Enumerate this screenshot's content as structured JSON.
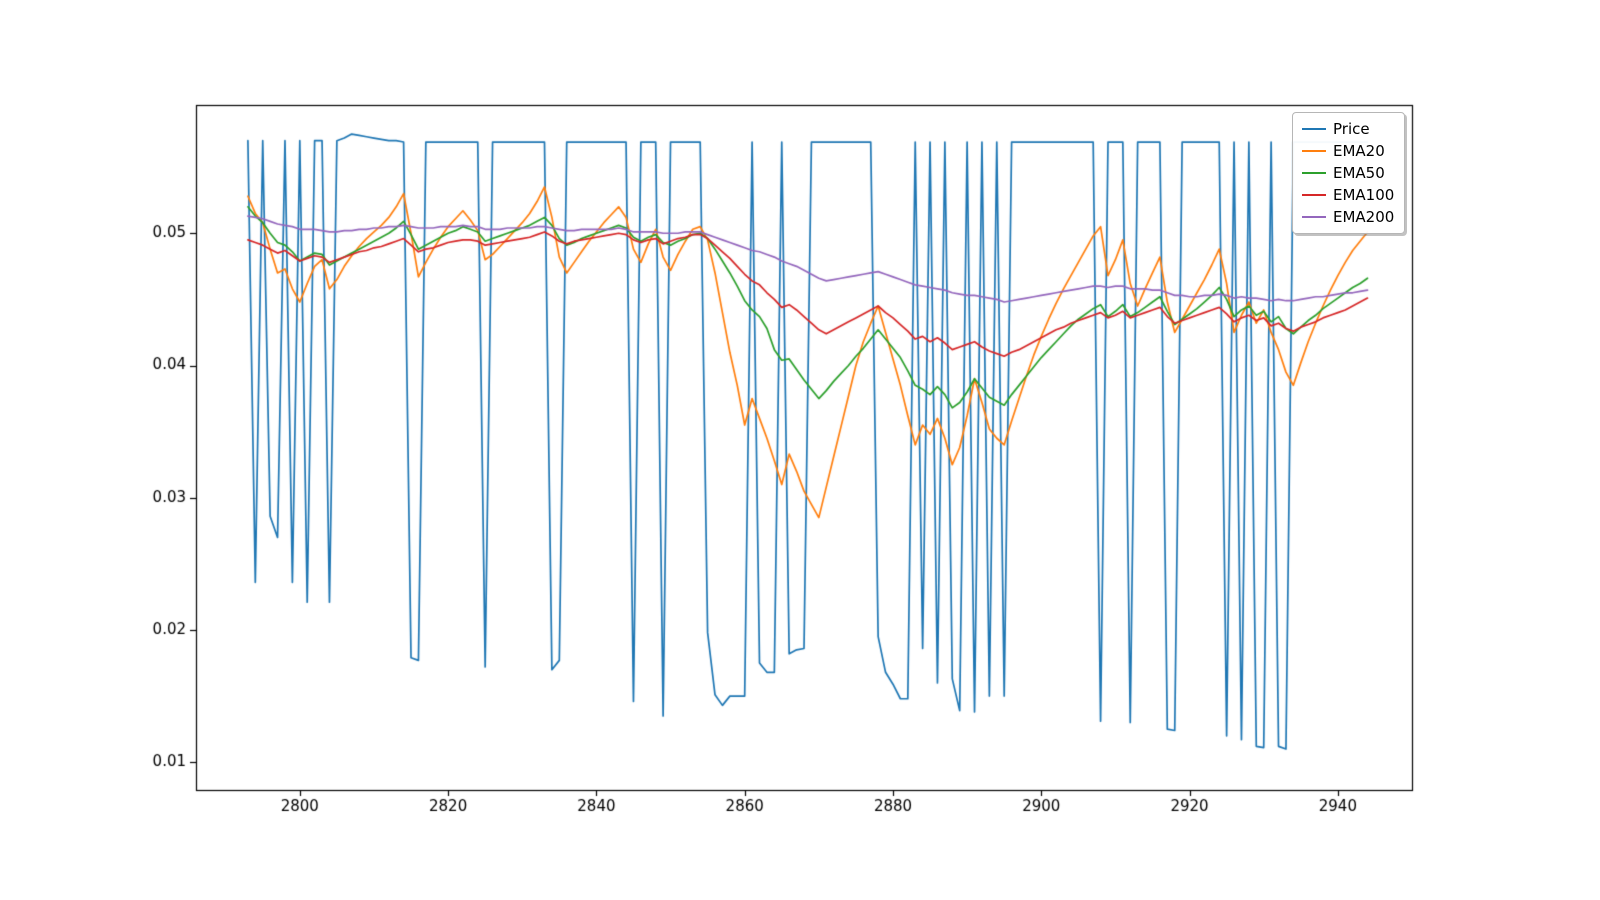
{
  "figure": {
    "background": "#ffffff",
    "plot_background": "#ffffff",
    "spine_color": "#000000",
    "tick_color": "#000000",
    "tick_label_color": "#000000"
  },
  "chart_data": {
    "type": "line",
    "title": "",
    "xlabel": "",
    "ylabel": "",
    "grid": false,
    "legend_position": "upper-right",
    "xlim": [
      2786,
      2950
    ],
    "ylim": [
      0.0079,
      0.0597
    ],
    "xticks": [
      2800,
      2820,
      2840,
      2860,
      2880,
      2900,
      2920,
      2940
    ],
    "yticks": [
      0.01,
      0.02,
      0.03,
      0.04,
      0.05
    ],
    "x_start": 2793,
    "x_step": 1,
    "x_end": 2944,
    "series": [
      {
        "name": "Price",
        "color": "#1f77b4",
        "values": [
          0.057,
          0.0236,
          0.057,
          0.0286,
          0.027,
          0.057,
          0.0236,
          0.057,
          0.0221,
          0.057,
          0.057,
          0.0221,
          0.057,
          0.0572,
          0.0575,
          0.0574,
          0.0573,
          0.0572,
          0.0571,
          0.057,
          0.057,
          0.0569,
          0.0179,
          0.0177,
          0.0569,
          0.0569,
          0.0569,
          0.0569,
          0.0569,
          0.0569,
          0.0569,
          0.0569,
          0.0172,
          0.0569,
          0.0569,
          0.0569,
          0.0569,
          0.0569,
          0.0569,
          0.0569,
          0.0569,
          0.017,
          0.0177,
          0.0569,
          0.0569,
          0.0569,
          0.0569,
          0.0569,
          0.0569,
          0.0569,
          0.0569,
          0.0569,
          0.0146,
          0.0569,
          0.0569,
          0.0569,
          0.0135,
          0.0569,
          0.0569,
          0.0569,
          0.0569,
          0.0569,
          0.0198,
          0.0151,
          0.0143,
          0.015,
          0.015,
          0.015,
          0.0569,
          0.0175,
          0.0168,
          0.0168,
          0.0569,
          0.0182,
          0.0185,
          0.0186,
          0.0569,
          0.0569,
          0.0569,
          0.0569,
          0.0569,
          0.0569,
          0.0569,
          0.0569,
          0.0569,
          0.0195,
          0.0168,
          0.0159,
          0.0148,
          0.0148,
          0.0569,
          0.0186,
          0.0569,
          0.016,
          0.0569,
          0.0163,
          0.0139,
          0.0569,
          0.0138,
          0.0569,
          0.015,
          0.0569,
          0.015,
          0.0569,
          0.0569,
          0.0569,
          0.0569,
          0.0569,
          0.0569,
          0.0569,
          0.0569,
          0.0569,
          0.0569,
          0.0569,
          0.0569,
          0.0131,
          0.0569,
          0.0569,
          0.0569,
          0.013,
          0.0569,
          0.0569,
          0.0569,
          0.0569,
          0.0125,
          0.0124,
          0.0569,
          0.0569,
          0.0569,
          0.0569,
          0.0569,
          0.0569,
          0.012,
          0.0569,
          0.0117,
          0.0569,
          0.0112,
          0.0111,
          0.0569,
          0.0112,
          0.011,
          0.0569,
          0.0569,
          0.0569,
          0.0569,
          0.0569,
          0.0569,
          0.0569,
          0.0569,
          0.0569,
          0.0569,
          0.0569
        ]
      },
      {
        "name": "EMA20",
        "color": "#ff7f0e",
        "values": [
          0.0528,
          0.0515,
          0.0508,
          0.0488,
          0.047,
          0.0473,
          0.0458,
          0.0448,
          0.0462,
          0.0475,
          0.048,
          0.0458,
          0.0465,
          0.0475,
          0.0483,
          0.049,
          0.0496,
          0.0501,
          0.0506,
          0.0512,
          0.052,
          0.053,
          0.05,
          0.0467,
          0.0478,
          0.0488,
          0.0497,
          0.0505,
          0.0511,
          0.0517,
          0.051,
          0.0502,
          0.048,
          0.0484,
          0.049,
          0.0496,
          0.0502,
          0.0508,
          0.0515,
          0.0524,
          0.0535,
          0.0512,
          0.0482,
          0.047,
          0.0478,
          0.0486,
          0.0494,
          0.0501,
          0.0508,
          0.0514,
          0.052,
          0.0512,
          0.0488,
          0.0478,
          0.0492,
          0.0503,
          0.0482,
          0.0472,
          0.0484,
          0.0494,
          0.0503,
          0.0505,
          0.0495,
          0.047,
          0.044,
          0.041,
          0.0385,
          0.0355,
          0.0375,
          0.036,
          0.0345,
          0.0328,
          0.031,
          0.0333,
          0.032,
          0.0305,
          0.0295,
          0.0285,
          0.0308,
          0.0331,
          0.0354,
          0.0377,
          0.04,
          0.0418,
          0.0432,
          0.0445,
          0.0425,
          0.0405,
          0.0385,
          0.0362,
          0.034,
          0.0355,
          0.0348,
          0.036,
          0.0345,
          0.0325,
          0.0338,
          0.0362,
          0.039,
          0.0372,
          0.0352,
          0.0345,
          0.034,
          0.0358,
          0.0375,
          0.0392,
          0.0408,
          0.0422,
          0.0435,
          0.0447,
          0.0458,
          0.0468,
          0.0478,
          0.0488,
          0.0498,
          0.0505,
          0.0468,
          0.048,
          0.0495,
          0.0462,
          0.0445,
          0.0458,
          0.047,
          0.0482,
          0.0448,
          0.0425,
          0.0435,
          0.0445,
          0.0455,
          0.0465,
          0.0476,
          0.0488,
          0.0462,
          0.0425,
          0.0438,
          0.0448,
          0.0432,
          0.0442,
          0.0425,
          0.0412,
          0.0395,
          0.0385,
          0.0402,
          0.0418,
          0.0432,
          0.0445,
          0.0457,
          0.0468,
          0.0478,
          0.0487,
          0.0494,
          0.0501
        ]
      },
      {
        "name": "EMA50",
        "color": "#2ca02c",
        "values": [
          0.052,
          0.0513,
          0.0508,
          0.05,
          0.0493,
          0.0491,
          0.0486,
          0.0479,
          0.0482,
          0.0485,
          0.0484,
          0.0476,
          0.0479,
          0.0482,
          0.0485,
          0.0488,
          0.0491,
          0.0494,
          0.0497,
          0.05,
          0.0504,
          0.0509,
          0.0499,
          0.0488,
          0.0491,
          0.0494,
          0.0497,
          0.05,
          0.0502,
          0.0505,
          0.0503,
          0.0501,
          0.0494,
          0.0496,
          0.0498,
          0.05,
          0.0502,
          0.0504,
          0.0506,
          0.0509,
          0.0512,
          0.0506,
          0.0496,
          0.0491,
          0.0493,
          0.0496,
          0.0498,
          0.05,
          0.0502,
          0.0504,
          0.0506,
          0.0504,
          0.0497,
          0.0494,
          0.0497,
          0.0499,
          0.0493,
          0.0491,
          0.0494,
          0.0496,
          0.0499,
          0.05,
          0.0496,
          0.0488,
          0.0479,
          0.047,
          0.046,
          0.0449,
          0.0442,
          0.0437,
          0.0428,
          0.0412,
          0.0404,
          0.0405,
          0.0397,
          0.0389,
          0.0382,
          0.0375,
          0.0381,
          0.0388,
          0.0394,
          0.04,
          0.0407,
          0.0413,
          0.042,
          0.0427,
          0.042,
          0.0413,
          0.0406,
          0.0396,
          0.0385,
          0.0382,
          0.0378,
          0.0384,
          0.0378,
          0.0368,
          0.0372,
          0.038,
          0.039,
          0.0383,
          0.0376,
          0.0373,
          0.037,
          0.0378,
          0.0385,
          0.0392,
          0.0399,
          0.0406,
          0.0412,
          0.0418,
          0.0424,
          0.043,
          0.0435,
          0.0439,
          0.0443,
          0.0446,
          0.0437,
          0.0441,
          0.0446,
          0.0437,
          0.044,
          0.0444,
          0.0448,
          0.0452,
          0.0441,
          0.0431,
          0.0435,
          0.0439,
          0.0443,
          0.0448,
          0.0453,
          0.0459,
          0.045,
          0.0437,
          0.0442,
          0.0445,
          0.0438,
          0.0441,
          0.0433,
          0.0437,
          0.0428,
          0.0424,
          0.0429,
          0.0434,
          0.0438,
          0.0443,
          0.0447,
          0.0451,
          0.0455,
          0.0459,
          0.0462,
          0.0466
        ]
      },
      {
        "name": "EMA100",
        "color": "#d62728",
        "values": [
          0.0495,
          0.0493,
          0.0491,
          0.0488,
          0.0485,
          0.0487,
          0.0483,
          0.0479,
          0.0481,
          0.0483,
          0.0482,
          0.0478,
          0.048,
          0.0482,
          0.0484,
          0.0486,
          0.0487,
          0.0489,
          0.049,
          0.0492,
          0.0494,
          0.0496,
          0.0491,
          0.0486,
          0.0488,
          0.0489,
          0.0491,
          0.0493,
          0.0494,
          0.0495,
          0.0495,
          0.0494,
          0.0491,
          0.0492,
          0.0493,
          0.0494,
          0.0495,
          0.0496,
          0.0497,
          0.0499,
          0.0501,
          0.0498,
          0.0494,
          0.0492,
          0.0494,
          0.0495,
          0.0496,
          0.0497,
          0.0498,
          0.0499,
          0.05,
          0.0499,
          0.0495,
          0.0493,
          0.0495,
          0.0496,
          0.0492,
          0.0494,
          0.0496,
          0.0497,
          0.0499,
          0.0499,
          0.0496,
          0.0491,
          0.0486,
          0.0481,
          0.0475,
          0.0469,
          0.0464,
          0.0461,
          0.0455,
          0.045,
          0.0444,
          0.0446,
          0.0442,
          0.0437,
          0.0432,
          0.0427,
          0.0424,
          0.0427,
          0.043,
          0.0433,
          0.0436,
          0.0439,
          0.0442,
          0.0445,
          0.044,
          0.0436,
          0.0431,
          0.0426,
          0.042,
          0.0422,
          0.0418,
          0.0421,
          0.0417,
          0.0412,
          0.0414,
          0.0416,
          0.0418,
          0.0414,
          0.0411,
          0.0409,
          0.0407,
          0.041,
          0.0412,
          0.0415,
          0.0418,
          0.0421,
          0.0424,
          0.0427,
          0.0429,
          0.0432,
          0.0434,
          0.0436,
          0.0438,
          0.044,
          0.0436,
          0.0438,
          0.0441,
          0.0436,
          0.0438,
          0.044,
          0.0442,
          0.0444,
          0.0437,
          0.0432,
          0.0434,
          0.0436,
          0.0438,
          0.044,
          0.0442,
          0.0444,
          0.0439,
          0.0433,
          0.0436,
          0.0438,
          0.0434,
          0.0436,
          0.043,
          0.0432,
          0.0428,
          0.0426,
          0.0429,
          0.0431,
          0.0433,
          0.0436,
          0.0438,
          0.044,
          0.0442,
          0.0445,
          0.0448,
          0.0451
        ]
      },
      {
        "name": "EMA200",
        "color": "#9467bd",
        "values": [
          0.0513,
          0.0512,
          0.0511,
          0.0509,
          0.0507,
          0.0506,
          0.0505,
          0.0503,
          0.0503,
          0.0503,
          0.0502,
          0.0501,
          0.0501,
          0.0502,
          0.0502,
          0.0503,
          0.0503,
          0.0504,
          0.0504,
          0.0505,
          0.0505,
          0.0506,
          0.0505,
          0.0504,
          0.0504,
          0.0504,
          0.0505,
          0.0505,
          0.0505,
          0.0506,
          0.0505,
          0.0505,
          0.0503,
          0.0503,
          0.0503,
          0.0504,
          0.0504,
          0.0504,
          0.0504,
          0.0505,
          0.0505,
          0.0504,
          0.0503,
          0.0502,
          0.0502,
          0.0503,
          0.0503,
          0.0503,
          0.0503,
          0.0503,
          0.0504,
          0.0503,
          0.0501,
          0.0501,
          0.0501,
          0.0501,
          0.05,
          0.05,
          0.05,
          0.0501,
          0.0501,
          0.0501,
          0.0499,
          0.0497,
          0.0495,
          0.0493,
          0.0491,
          0.0489,
          0.0487,
          0.0486,
          0.0484,
          0.0482,
          0.0479,
          0.0477,
          0.0475,
          0.0472,
          0.0469,
          0.0466,
          0.0464,
          0.0465,
          0.0466,
          0.0467,
          0.0468,
          0.0469,
          0.047,
          0.0471,
          0.0469,
          0.0467,
          0.0465,
          0.0463,
          0.0461,
          0.046,
          0.0459,
          0.0458,
          0.0457,
          0.0455,
          0.0454,
          0.0453,
          0.0453,
          0.0452,
          0.0451,
          0.045,
          0.0448,
          0.0449,
          0.045,
          0.0451,
          0.0452,
          0.0453,
          0.0454,
          0.0455,
          0.0456,
          0.0457,
          0.0458,
          0.0459,
          0.046,
          0.046,
          0.0459,
          0.046,
          0.046,
          0.0458,
          0.0458,
          0.0458,
          0.0457,
          0.0457,
          0.0455,
          0.0453,
          0.0453,
          0.0452,
          0.0452,
          0.0453,
          0.0453,
          0.0454,
          0.0453,
          0.0451,
          0.0452,
          0.0451,
          0.0451,
          0.045,
          0.0449,
          0.045,
          0.0449,
          0.0449,
          0.045,
          0.0451,
          0.0452,
          0.0452,
          0.0453,
          0.0454,
          0.0455,
          0.0455,
          0.0456,
          0.0457
        ]
      }
    ]
  }
}
